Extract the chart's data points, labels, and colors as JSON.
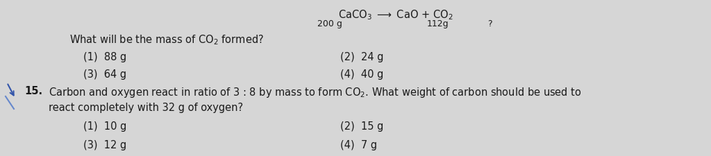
{
  "bg_color": "#d6d6d6",
  "text_color": "#1a1a1a",
  "eq_formula": "CaCO$_3$ $\\longrightarrow$ CaO + CO$_2$",
  "eq_masses": [
    "200 g",
    "112g",
    "?"
  ],
  "prev_question": "What will be the mass of CO$_2$ formed?",
  "prev_ans": [
    [
      "(1)  88 g",
      "(2)  24 g"
    ],
    [
      "(3)  64 g",
      "(4)  40 g"
    ]
  ],
  "q15_line1": "Carbon and oxygen react in ratio of 3 : 8 by mass to form CO$_2$. What weight of carbon should be used to",
  "q15_line2": "react completely with 32 g of oxygen?",
  "main_ans": [
    [
      "(1)  10 g",
      "(2)  15 g"
    ],
    [
      "(3)  12 g",
      "(4)  7 g"
    ]
  ],
  "pencil_color_dark": "#3355aa",
  "pencil_color_light": "#6688cc",
  "fontsize_eq": 10.5,
  "fontsize_main": 10.5,
  "fontsize_small": 9.0
}
